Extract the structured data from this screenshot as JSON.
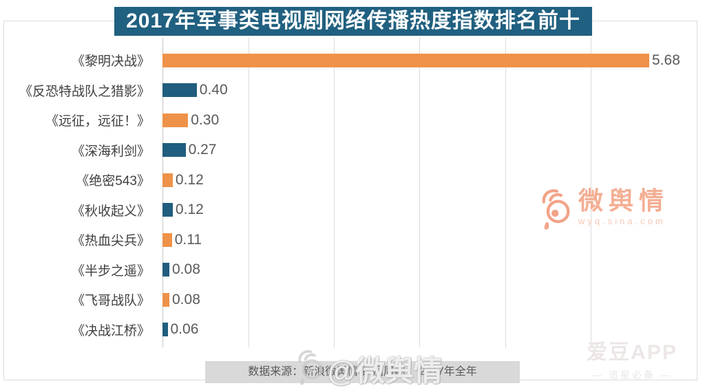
{
  "title": {
    "text": "2017年军事类电视剧网络传播热度指数排名前十"
  },
  "chart_data": {
    "type": "bar",
    "orientation": "horizontal",
    "title": "2017年军事类电视剧网络传播热度指数排名前十",
    "categories": [
      "《黎明决战》",
      "《反恐特战队之猎影》",
      "《远征，远征！》",
      "《深海利剑》",
      "《绝密543》",
      "《秋收起义》",
      "《热血尖兵》",
      "《半步之遥》",
      "《飞哥战队》",
      "《决战江桥》"
    ],
    "values": [
      5.68,
      0.4,
      0.3,
      0.27,
      0.12,
      0.12,
      0.11,
      0.08,
      0.08,
      0.06
    ],
    "value_labels": [
      "5.68",
      "0.40",
      "0.30",
      "0.27",
      "0.12",
      "0.12",
      "0.11",
      "0.08",
      "0.08",
      "0.06"
    ],
    "series_colors": [
      "#EF9249",
      "#205D7E"
    ],
    "xlim": [
      0,
      6.25
    ],
    "grid_values": [
      1,
      2,
      3,
      4,
      5
    ],
    "grid": true,
    "legend": "none",
    "xlabel": "",
    "ylabel": ""
  },
  "footer": {
    "caption": "数据来源：新浪微舆情 数据周期： 2017年全年"
  },
  "watermarks": {
    "brand_right": {
      "name": "微舆情",
      "url": "wyq.sina.com"
    },
    "overlay_center": {
      "text": "@微舆情"
    },
    "app_corner": {
      "name": "爱豆APP",
      "tagline": "— 追星必备 —"
    }
  },
  "colors": {
    "title_bg": "#206080",
    "title_fg": "#FFFFFF",
    "bar_orange": "#EF9249",
    "bar_blue": "#205D7E",
    "caption_bg": "#D9D9D9",
    "caption_fg": "#595959",
    "grid": "#DBDBDB",
    "axis": "#C6C6C6",
    "category_fg": "#404040",
    "value_fg": "#595959",
    "watermark_salmon": "#F4AE93"
  }
}
